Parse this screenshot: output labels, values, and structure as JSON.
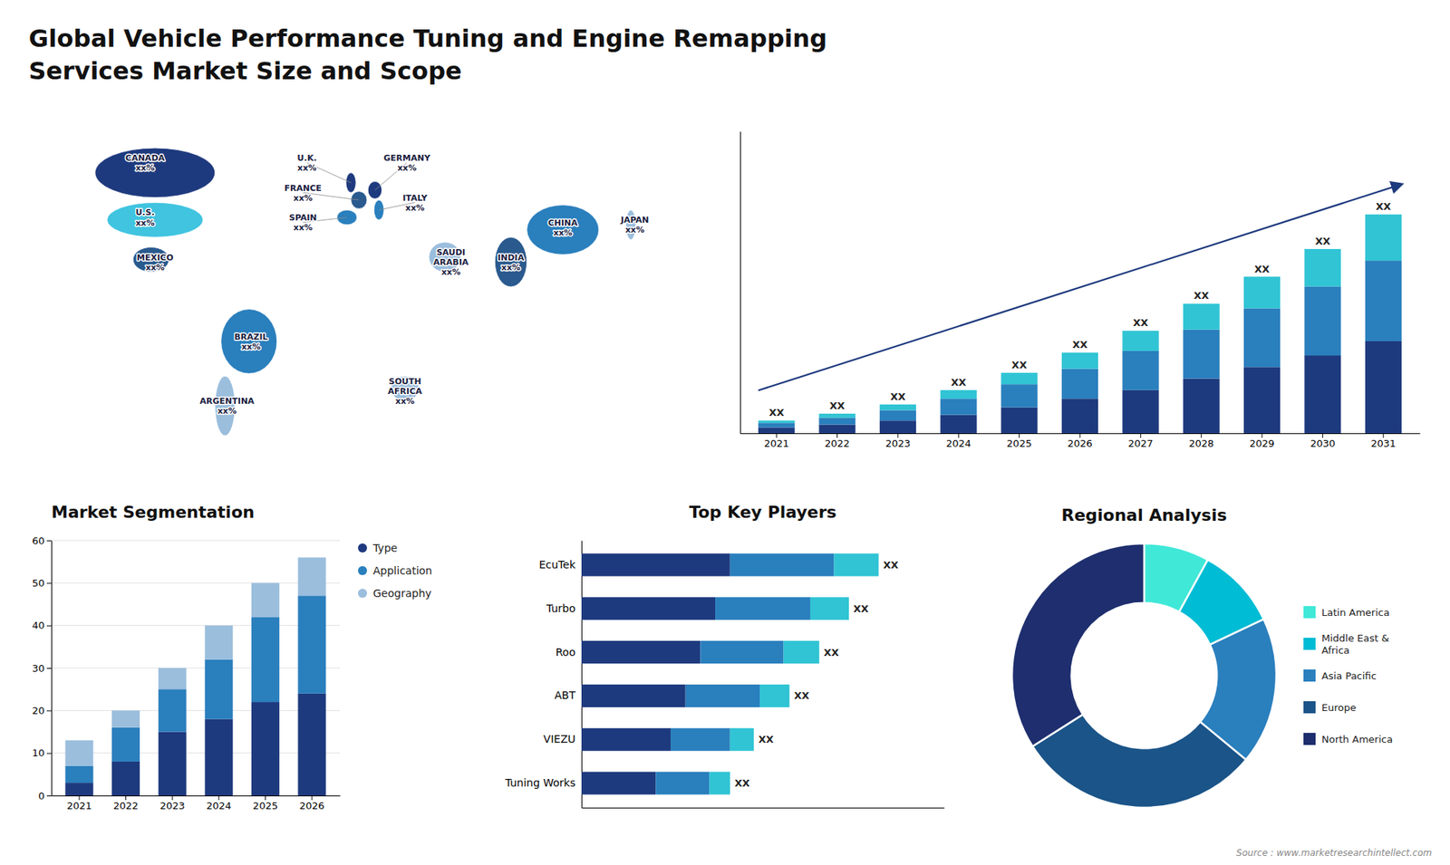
{
  "title": "Global Vehicle Performance Tuning and Engine Remapping\nServices Market Size and Scope",
  "annotations": [
    "Source : www.marketresearchintellect.com"
  ],
  "chart_data": [
    {
      "type": "map",
      "annotations": [
        "CANADA\nxx%",
        "U.S.\nxx%",
        "MEXICO\nxx%",
        "BRAZIL\nxx%",
        "ARGENTINA\nxx%",
        "U.K.\nxx%",
        "FRANCE\nxx%",
        "SPAIN\nxx%",
        "GERMANY\nxx%",
        "ITALY\nxx%",
        "SAUDI\nARABIA\nxx%",
        "SOUTH\nAFRICA\nxx%",
        "INDIA\nxx%",
        "CHINA\nxx%",
        "JAPAN\nxx%"
      ],
      "colors": [
        "#1e3a7e",
        "#40c4e0",
        "#2a5a8e",
        "#2a7fbd",
        "#9bbedd",
        "#1e3a7e",
        "#2a5a8e",
        "#2a7fbd",
        "#1e3a7e",
        "#2a7fbd",
        "#9bbedd",
        "#9bbedd",
        "#2a5a8e",
        "#2a7fbd",
        "#9bbedd"
      ]
    },
    {
      "type": "bar",
      "stacked": true,
      "categories": [
        "2021",
        "2022",
        "2023",
        "2024",
        "2025",
        "2026",
        "2027",
        "2028",
        "2029",
        "2030",
        "2031"
      ],
      "series": [
        {
          "color": "#1e3a7e",
          "values": [
            1.0,
            1.5,
            2.2,
            3.2,
            4.5,
            6.0,
            7.5,
            9.5,
            11.5,
            13.5,
            16.0
          ]
        },
        {
          "color": "#2a7fbd",
          "values": [
            0.8,
            1.2,
            1.8,
            2.8,
            4.0,
            5.2,
            6.8,
            8.5,
            10.2,
            12.0,
            14.0
          ]
        },
        {
          "color": "#30c4d4",
          "values": [
            0.4,
            0.7,
            1.0,
            1.5,
            2.0,
            2.8,
            3.5,
            4.5,
            5.5,
            6.5,
            8.0
          ]
        }
      ],
      "ylim": [
        0,
        52.44
      ],
      "tick_labels": "x",
      "annotations": [
        "XX",
        "XX",
        "XX",
        "XX",
        "XX",
        "XX",
        "XX",
        "XX",
        "XX",
        "XX",
        "XX"
      ]
    },
    {
      "type": "bar",
      "title": "Market Segmentation",
      "stacked": true,
      "categories": [
        "2021",
        "2022",
        "2023",
        "2024",
        "2025",
        "2026"
      ],
      "series": [
        {
          "name": "Type",
          "color": "#1e3a7e",
          "values": [
            3,
            8,
            15,
            18,
            22,
            24
          ]
        },
        {
          "name": "Application",
          "color": "#2a7fbd",
          "values": [
            4,
            8,
            10,
            14,
            20,
            23
          ]
        },
        {
          "name": "Geography",
          "color": "#9bbedd",
          "values": [
            6,
            4,
            5,
            8,
            8,
            9
          ]
        }
      ],
      "ylim": [
        0,
        60
      ],
      "yticks": [
        0,
        10,
        20,
        30,
        40,
        50,
        60
      ],
      "grid": true,
      "legend": "right"
    },
    {
      "type": "bar",
      "title": "Top Key Players",
      "stacked": true,
      "orientation": "horizontal",
      "categories": [
        "EcuTek",
        "Turbo",
        "Roo",
        "ABT",
        "VIEZU",
        "Tuning Works"
      ],
      "series": [
        {
          "color": "#1e3a7e",
          "values": [
            5.0,
            4.5,
            4.0,
            3.5,
            3.0,
            2.5
          ]
        },
        {
          "color": "#2a7fbd",
          "values": [
            3.5,
            3.2,
            2.8,
            2.5,
            2.0,
            1.8
          ]
        },
        {
          "color": "#30c4d4",
          "values": [
            1.5,
            1.3,
            1.2,
            1.0,
            0.8,
            0.7
          ]
        }
      ],
      "xlim": [
        0,
        12.2
      ],
      "tick_labels": "y",
      "annotations": [
        "XX",
        "XX",
        "XX",
        "XX",
        "XX",
        "XX"
      ]
    },
    {
      "type": "pie",
      "title": "Regional Analysis",
      "categories": [
        "Latin America",
        "Middle East &\nAfrica",
        "Asia Pacific",
        "Europe",
        "North America"
      ],
      "values": [
        8,
        10,
        18,
        30,
        34
      ],
      "colors": [
        "#40e8d8",
        "#00bcd4",
        "#2a7fbd",
        "#1a5488",
        "#1e2e6e"
      ],
      "legend": "right"
    }
  ]
}
